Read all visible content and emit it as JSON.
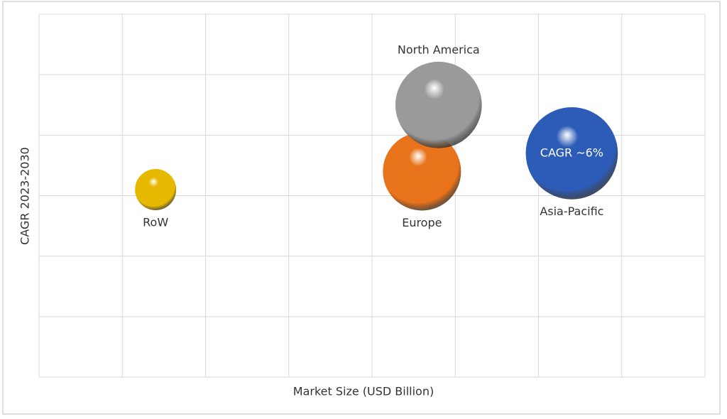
{
  "chart_data": {
    "type": "bubble",
    "x_label": "Market Size (USD Billion)",
    "y_label": "CAGR 2023-2030",
    "xlim": [
      0,
      8
    ],
    "ylim": [
      0,
      6
    ],
    "xticks": [
      0,
      1,
      2,
      3,
      4,
      5,
      6,
      7,
      8
    ],
    "yticks": [
      0,
      1,
      2,
      3,
      4,
      5,
      6
    ],
    "tick_labels": false,
    "grid": true,
    "series": [
      {
        "name": "RoW",
        "color": "#e6b800",
        "x": [
          1.4
        ],
        "values": [
          3.1
        ],
        "sizes": [
          1
        ],
        "label_position": "below"
      },
      {
        "name": "Europe",
        "color": "#e8731a",
        "x": [
          4.6
        ],
        "values": [
          3.4
        ],
        "sizes": [
          3.6
        ],
        "label_position": "below"
      },
      {
        "name": "North America",
        "color": "#9a9a9a",
        "x": [
          4.8
        ],
        "values": [
          4.5
        ],
        "sizes": [
          4.4
        ],
        "label_position": "above"
      },
      {
        "name": "Asia-Pacific",
        "color": "#2d5cb8",
        "x": [
          6.4
        ],
        "values": [
          3.7
        ],
        "sizes": [
          5
        ],
        "label_position": "below",
        "annotation": "CAGR ~6%"
      }
    ]
  }
}
